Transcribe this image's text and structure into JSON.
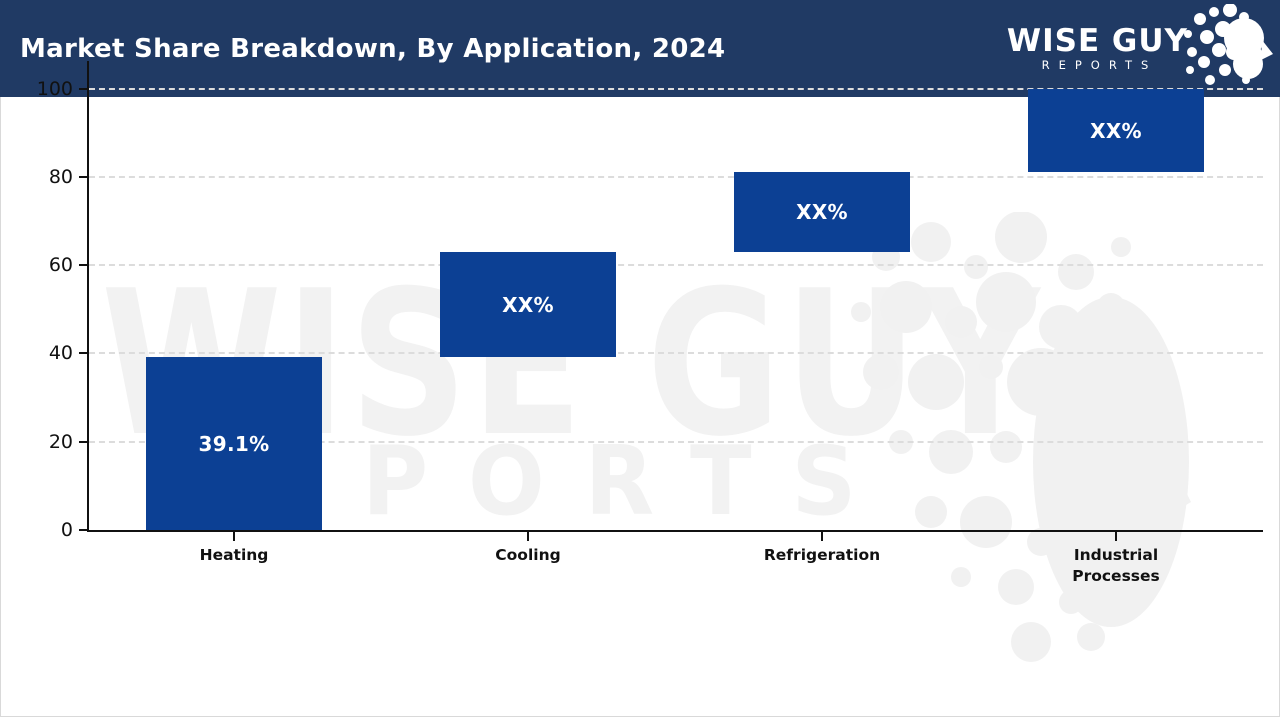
{
  "header": {
    "title": "Market Share Breakdown, By Application, 2024",
    "bg_color": "#203a64",
    "logo": {
      "wordmark": "WISE GUY",
      "subtitle": "REPORTS"
    }
  },
  "watermark": {
    "line1": "WISE GUY",
    "line2": "REPORTS"
  },
  "chart_data": {
    "type": "bar",
    "subtype": "waterfall",
    "title": "Market Share Breakdown, By Application, 2024",
    "categories": [
      "Heating",
      "Cooling",
      "Refrigeration",
      "Industrial Processes"
    ],
    "series": [
      {
        "name": "Market Share (%)",
        "segments": [
          {
            "category": "Heating",
            "start": 0,
            "end": 39.1,
            "label": "39.1%"
          },
          {
            "category": "Cooling",
            "start": 39.1,
            "end": 63,
            "label": "XX%"
          },
          {
            "category": "Refrigeration",
            "start": 63,
            "end": 81,
            "label": "XX%"
          },
          {
            "category": "Industrial Processes",
            "start": 81,
            "end": 100,
            "label": "XX%"
          }
        ]
      }
    ],
    "y_ticks": [
      0,
      20,
      40,
      60,
      80,
      100
    ],
    "ylim": [
      0,
      106
    ],
    "xlabel": "",
    "ylabel": "",
    "bar_color": "#0c4094",
    "grid": "horizontal-dashed",
    "legend": "none"
  }
}
